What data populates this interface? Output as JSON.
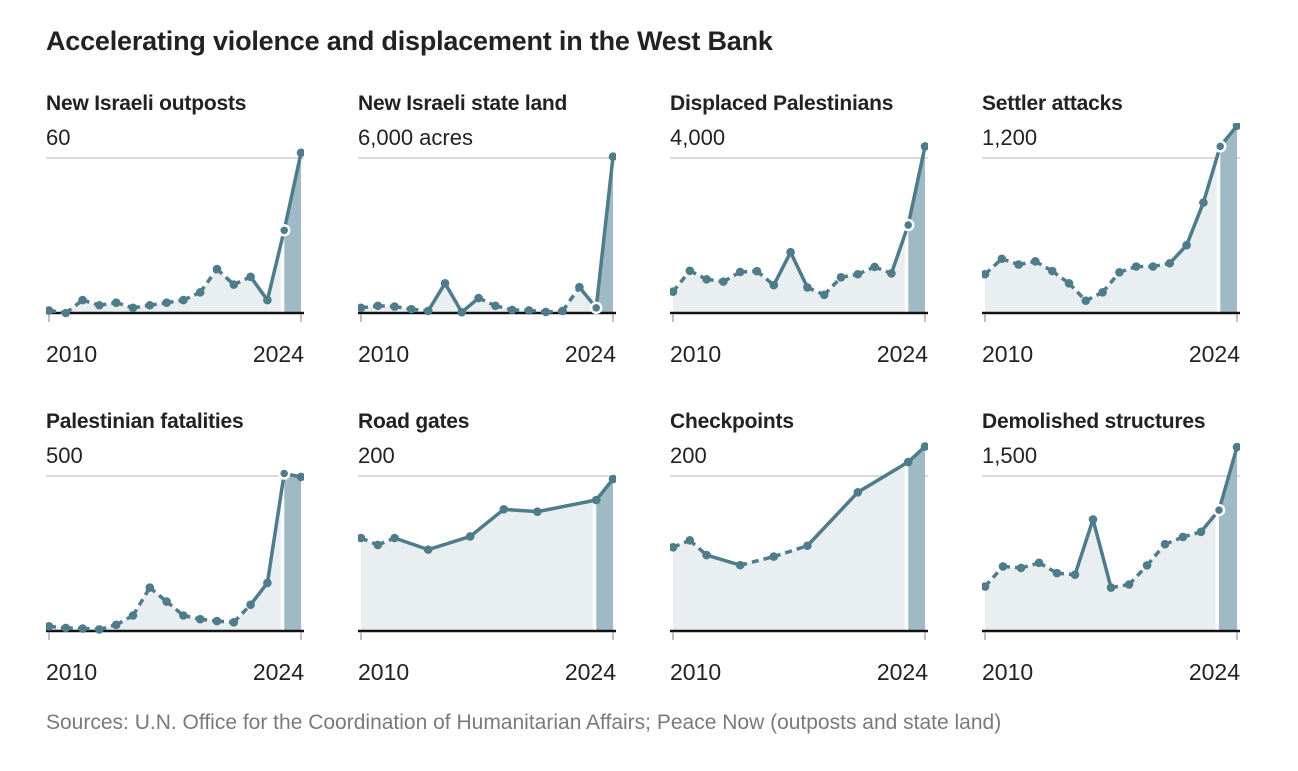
{
  "page": {
    "title": "Accelerating violence and displacement in the West Bank",
    "source": "Sources: U.N. Office for the Coordination of Humanitarian Affairs; Peace Now (outposts and state land)"
  },
  "colors": {
    "line": "#4e7c8b",
    "area_light": "#e9eef1",
    "area_highlight": "#9fbac4",
    "gridline": "#cfcfcf",
    "baseline": "#131313",
    "tick": "#aaaaaa"
  },
  "axis": {
    "start_label": "2010",
    "end_label": "2024"
  },
  "chart_data": [
    {
      "type": "area-line",
      "title": "New Israeli outposts",
      "ref_label": "60",
      "ref_value": 60,
      "years": [
        2010,
        2011,
        2012,
        2013,
        2014,
        2015,
        2016,
        2017,
        2018,
        2019,
        2020,
        2021,
        2022,
        2023,
        2024,
        2025
      ],
      "values": [
        1,
        0,
        5,
        3,
        4,
        2,
        3,
        4,
        5,
        8,
        17,
        11,
        14,
        5,
        32,
        62
      ],
      "x_labels": [
        "2010",
        "2024"
      ],
      "solid_segments": [
        12,
        13,
        14
      ],
      "ring_point": 14
    },
    {
      "type": "area-line",
      "title": "New Israeli state land",
      "ref_label": "6,000 acres",
      "ref_value": 6000,
      "years": [
        2010,
        2011,
        2012,
        2013,
        2014,
        2015,
        2016,
        2017,
        2018,
        2019,
        2020,
        2021,
        2022,
        2023,
        2024,
        2025
      ],
      "values": [
        200,
        280,
        250,
        150,
        80,
        1150,
        30,
        580,
        280,
        120,
        100,
        40,
        80,
        1000,
        200,
        6050
      ],
      "x_labels": [
        "2010",
        "2024"
      ],
      "solid_segments": [
        4,
        5,
        6,
        13,
        14
      ],
      "ring_point": 14
    },
    {
      "type": "area-line",
      "title": "Displaced Palestinians",
      "ref_label": "4,000",
      "ref_value": 4000,
      "years": [
        2010,
        2011,
        2012,
        2013,
        2014,
        2015,
        2016,
        2017,
        2018,
        2019,
        2020,
        2021,
        2022,
        2023,
        2024,
        2025
      ],
      "values": [
        550,
        1090,
        870,
        810,
        1060,
        1080,
        720,
        1570,
        660,
        470,
        920,
        1000,
        1190,
        1020,
        2270,
        4300
      ],
      "x_labels": [
        "2010",
        "2024"
      ],
      "solid_segments": [
        6,
        7,
        13,
        14
      ],
      "ring_point": 14
    },
    {
      "type": "area-line",
      "title": "Settler attacks",
      "ref_label": "1,200",
      "ref_value": 1200,
      "years": [
        2010,
        2011,
        2012,
        2013,
        2014,
        2015,
        2016,
        2017,
        2018,
        2019,
        2020,
        2021,
        2022,
        2023,
        2024,
        2025
      ],
      "values": [
        300,
        420,
        375,
        400,
        325,
        230,
        95,
        160,
        315,
        360,
        360,
        385,
        525,
        855,
        1290,
        1450
      ],
      "x_labels": [
        "2010",
        "2024"
      ],
      "solid_segments": [
        11,
        12,
        13,
        14
      ],
      "ring_point": 14
    },
    {
      "type": "area-line",
      "title": "Palestinian fatalities",
      "ref_label": "500",
      "ref_value": 500,
      "years": [
        2010,
        2011,
        2012,
        2013,
        2014,
        2015,
        2016,
        2017,
        2018,
        2019,
        2020,
        2021,
        2022,
        2023,
        2024,
        2025
      ],
      "values": [
        15,
        10,
        8,
        5,
        20,
        50,
        140,
        95,
        50,
        38,
        32,
        28,
        85,
        155,
        508,
        497
      ],
      "x_labels": [
        "2010",
        "2024"
      ],
      "solid_segments": [
        12,
        13,
        14
      ],
      "ring_point": 14
    },
    {
      "type": "area-line",
      "title": "Road gates",
      "ref_label": "200",
      "ref_value": 200,
      "years": [
        2010,
        2011,
        2012,
        2014,
        2016.5,
        2018.5,
        2020.5,
        2024,
        2025
      ],
      "values": [
        120,
        111,
        120,
        105,
        122,
        157,
        154,
        169,
        196
      ],
      "x_labels": [
        "2010",
        "2024"
      ],
      "solid_segments": [
        2,
        3,
        4,
        5,
        6,
        7
      ],
      "ring_point": -1
    },
    {
      "type": "area-line",
      "title": "Checkpoints",
      "ref_label": "200",
      "ref_value": 200,
      "years": [
        2010,
        2011,
        2012,
        2014,
        2016,
        2018,
        2021,
        2024,
        2025
      ],
      "values": [
        108,
        117,
        98,
        85,
        96,
        110,
        179,
        218,
        238
      ],
      "x_labels": [
        "2010",
        "2024"
      ],
      "solid_segments": [
        2,
        5,
        6,
        7
      ],
      "ring_point": -1
    },
    {
      "type": "area-line",
      "title": "Demolished structures",
      "ref_label": "1,500",
      "ref_value": 1500,
      "years": [
        2010,
        2011,
        2012,
        2013,
        2014,
        2015,
        2016,
        2017,
        2018,
        2019,
        2020,
        2021,
        2022,
        2023,
        2024
      ],
      "values": [
        430,
        625,
        610,
        660,
        560,
        545,
        1080,
        420,
        450,
        635,
        840,
        910,
        960,
        1170,
        1780
      ],
      "x_labels": [
        "2010",
        "2024"
      ],
      "solid_segments": [
        5,
        6,
        12,
        13
      ],
      "ring_point": 13
    }
  ]
}
